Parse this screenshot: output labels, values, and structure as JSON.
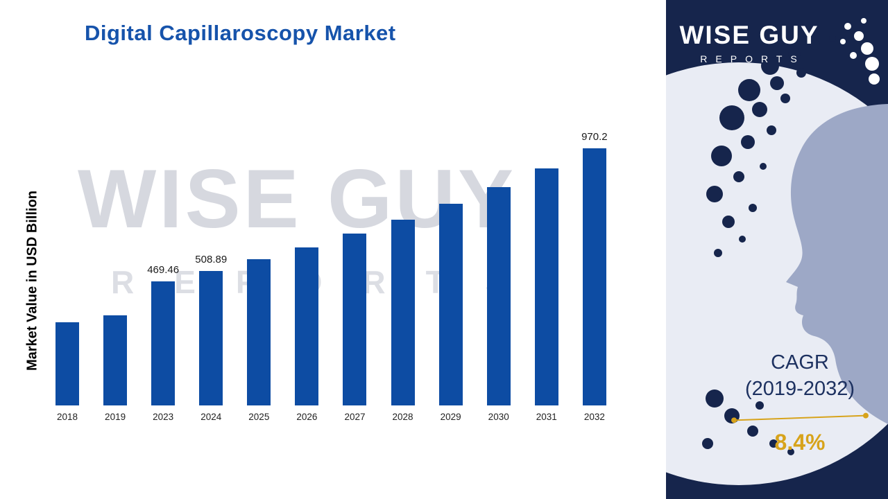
{
  "page": {
    "title": "Digital Capillaroscopy Market"
  },
  "watermark": {
    "line1": "WISE GUY",
    "line2": "REPORTS"
  },
  "brand": {
    "name_line1": "WISE GUY",
    "name_line2": "REPORTS"
  },
  "cagr": {
    "label": "CAGR",
    "range": "(2019-2032)",
    "value": "8.4%"
  },
  "colors": {
    "bar": "#0d4ca3",
    "title_blue": "#1653ab",
    "panel_navy": "#16254c",
    "panel_light": "#e9ecf4",
    "face_gray_blue": "#9da8c6",
    "accent_gold": "#d7a31b",
    "watermark_gray": "#d6d8df"
  },
  "chart_data": {
    "type": "bar",
    "title": "Digital Capillaroscopy Market",
    "ylabel": "Market Value in USD Billion",
    "xlabel": "",
    "ylim": [
      0,
      1000
    ],
    "grid": false,
    "bar_color": "#0d4ca3",
    "categories": [
      "2018",
      "2019",
      "2023",
      "2024",
      "2025",
      "2026",
      "2027",
      "2028",
      "2029",
      "2030",
      "2031",
      "2032"
    ],
    "values": [
      313.7,
      340.0,
      469.46,
      508.89,
      551.6,
      598.0,
      648.2,
      702.6,
      761.7,
      825.6,
      895.0,
      970.2
    ],
    "data_labels": [
      "",
      "",
      "469.46",
      "508.89",
      "",
      "",
      "",
      "",
      "",
      "",
      "",
      "970.2"
    ]
  }
}
